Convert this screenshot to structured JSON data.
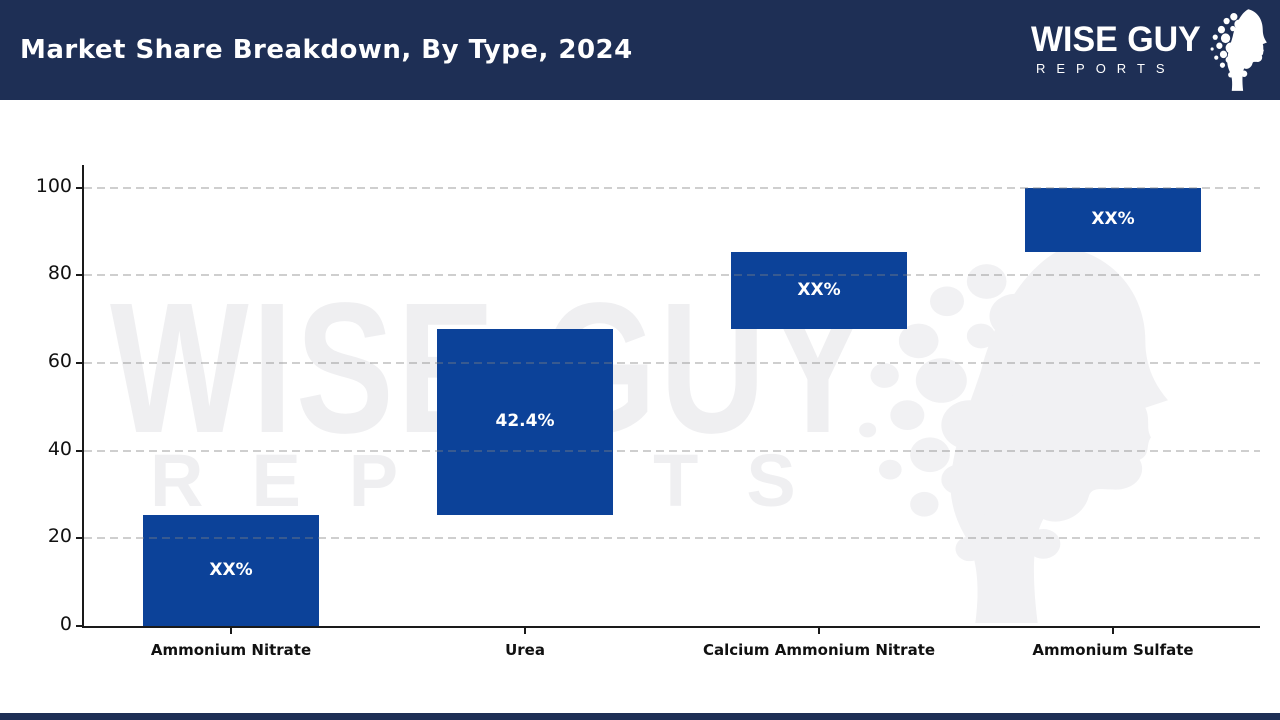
{
  "header": {
    "title": "Market Share Breakdown, By Type, 2024",
    "logo": {
      "line1": "WISE GUY",
      "line2": "REPORTS"
    }
  },
  "watermark": {
    "line1": "WISE GUY",
    "line2": "REPORTS"
  },
  "colors": {
    "header_bg": "#1e2f55",
    "footer_bg": "#1e2f55",
    "title_text": "#ffffff",
    "bar_fill": "#0c4299",
    "bar_label_text": "#ffffff",
    "grid_line": "rgba(128,128,128,0.38)",
    "axis_line": "#1a1a1a",
    "watermark": "#efeff1"
  },
  "chart_data": {
    "type": "bar",
    "subtype": "waterfall-floating-bars",
    "title": "Market Share Breakdown, By Type, 2024",
    "categories": [
      "Ammonium Nitrate",
      "Urea",
      "Calcium Ammonium Nitrate",
      "Ammonium Sulfate"
    ],
    "segments": [
      {
        "start": 0,
        "end": 25.3
      },
      {
        "start": 25.3,
        "end": 67.7
      },
      {
        "start": 67.7,
        "end": 85.2
      },
      {
        "start": 85.2,
        "end": 100
      }
    ],
    "bar_labels": [
      "XX%",
      "42.4%",
      "XX%",
      "XX%"
    ],
    "xlabel": "",
    "ylabel": "",
    "ylim": [
      0,
      100
    ],
    "yticks": [
      0,
      20,
      40,
      60,
      80,
      100
    ],
    "grid": "horizontal dashed, drawn over bars",
    "legend": "none"
  }
}
